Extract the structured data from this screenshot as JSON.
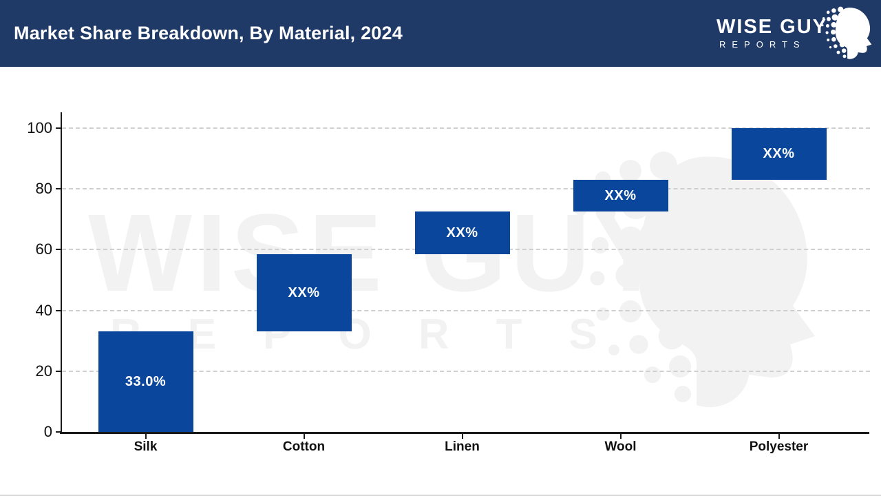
{
  "header": {
    "title": "Market Share Breakdown, By Material, 2024",
    "logo": {
      "line1": "WISE GUY",
      "line2": "REPORTS"
    }
  },
  "watermark": {
    "line1": "WISE GUY",
    "line2": "REPORTS"
  },
  "chart_data": {
    "type": "bar",
    "subtype": "waterfall",
    "title": "Market Share Breakdown, By Material, 2024",
    "categories": [
      "Silk",
      "Cotton",
      "Linen",
      "Wool",
      "Polyester"
    ],
    "segments": [
      {
        "category": "Silk",
        "start": 0,
        "end": 33,
        "value": 33.0,
        "label": "33.0%"
      },
      {
        "category": "Cotton",
        "start": 33,
        "end": 58.5,
        "value": 25.5,
        "label": "XX%"
      },
      {
        "category": "Linen",
        "start": 58.5,
        "end": 72.5,
        "value": 14.0,
        "label": "XX%"
      },
      {
        "category": "Wool",
        "start": 72.5,
        "end": 83,
        "value": 10.5,
        "label": "XX%"
      },
      {
        "category": "Polyester",
        "start": 83,
        "end": 100,
        "value": 17.0,
        "label": "XX%"
      }
    ],
    "xlabel": "",
    "ylabel": "",
    "ylim": [
      0,
      100
    ],
    "yticks": [
      0,
      20,
      40,
      60,
      80,
      100
    ],
    "grid": true,
    "legend": "none"
  },
  "colors": {
    "header_bg": "#203a68",
    "bar": "#0a479c",
    "bar_label": "#ffffff",
    "grid": "#cfcfcf",
    "axis": "#1a1a1a",
    "watermark": "#f2f2f2",
    "title": "#ffffff"
  }
}
